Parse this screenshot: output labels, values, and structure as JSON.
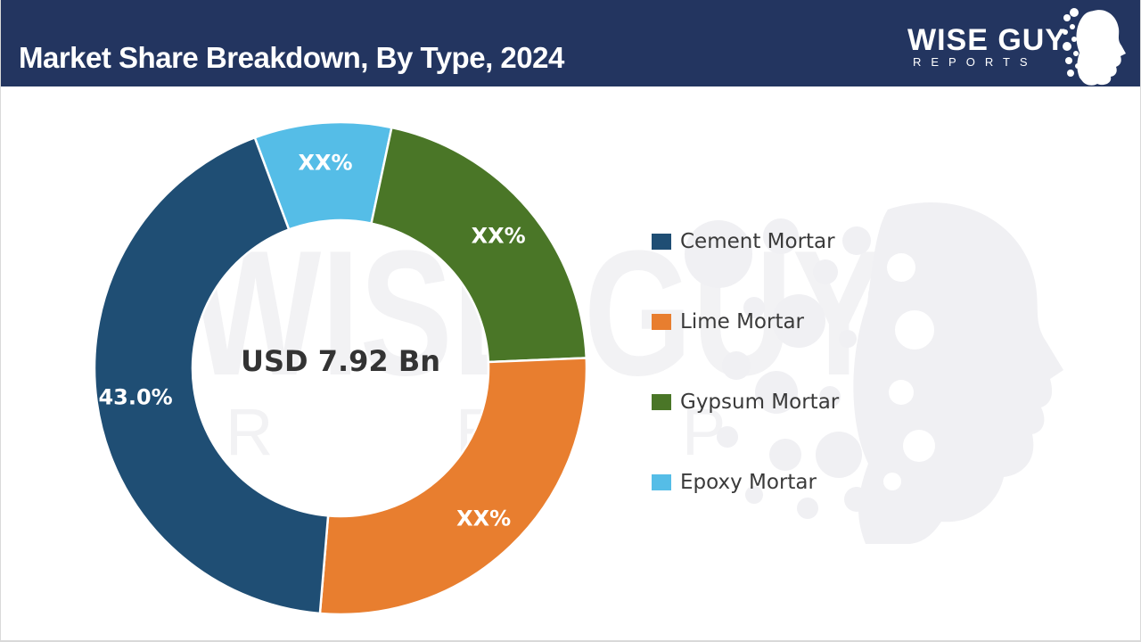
{
  "header": {
    "title": "Market Share Breakdown, By Type, 2024",
    "bg_color": "#233560",
    "brand": {
      "name": "WISE GUY",
      "sub": "REPORTS"
    }
  },
  "watermark": {
    "line1": "WISE GUY",
    "line2": "R E P O R T S"
  },
  "chart_data": {
    "type": "donut",
    "title": "Market Share Breakdown, By Type, 2024",
    "center_label": "USD 7.92 Bn",
    "units": "percent share of market",
    "legend_position": "right",
    "start_angle_deg_clockwise_from_top": -20.4,
    "draw_order": [
      3,
      2,
      1,
      0
    ],
    "slices": [
      {
        "label": "Cement Mortar",
        "value": 43.0,
        "display_label": "43.0%",
        "color": "#1F4E74"
      },
      {
        "label": "Lime Mortar",
        "value": 27.0,
        "display_label": "XX%",
        "color": "#E87E2F"
      },
      {
        "label": "Gypsum Mortar",
        "value": 21.0,
        "display_label": "XX%",
        "color": "#4A7627"
      },
      {
        "label": "Epoxy Mortar",
        "value": 9.0,
        "display_label": "XX%",
        "color": "#55BDE7"
      }
    ],
    "slice_label_color": "#ffffff"
  }
}
